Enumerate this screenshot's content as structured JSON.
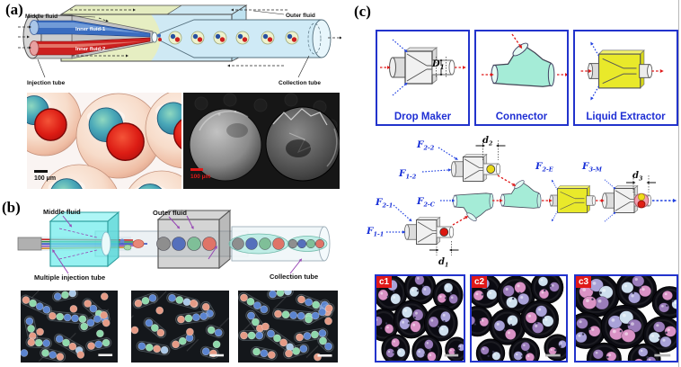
{
  "figure": {
    "panel_a": {
      "tag": "(a)",
      "labels": {
        "middle_fluid": "Middle fluid",
        "outer_fluid": "Outer fluid",
        "inner_fluid_1": "Inner fluid-1",
        "inner_fluid_2": "Inner fluid-2",
        "injection_tube": "Injection tube",
        "collection_tube": "Collection tube"
      },
      "optical_scalebar": "100 μm",
      "sem_scalebar": "100 μm"
    },
    "panel_b": {
      "tag": "(b)",
      "labels": {
        "middle_fluid": "Middle fluid",
        "outer_fluid": "Outer fluid",
        "multiple_injection_tube": "Multiple injection tube",
        "collection_tube": "Collection tube"
      }
    },
    "panel_c": {
      "tag": "(c)",
      "modules": [
        {
          "name": "Drop Maker",
          "dim_base": "D",
          "dim_sub": "1"
        },
        {
          "name": "Connector"
        },
        {
          "name": "Liquid Extractor"
        }
      ],
      "assembly": {
        "flow_labels": [
          {
            "id": "f2_2",
            "base": "F",
            "sub": "2-2"
          },
          {
            "id": "f1_2",
            "base": "F",
            "sub": "1-2"
          },
          {
            "id": "f2_1",
            "base": "F",
            "sub": "2-1"
          },
          {
            "id": "f1_1",
            "base": "F",
            "sub": "1-1"
          },
          {
            "id": "f2_c",
            "base": "F",
            "sub": "2-C"
          },
          {
            "id": "f2_e",
            "base": "F",
            "sub": "2-E"
          },
          {
            "id": "f3_m",
            "base": "F",
            "sub": "3-M"
          }
        ],
        "dim_labels": [
          {
            "id": "d1",
            "base": "d",
            "sub": "1"
          },
          {
            "id": "d2",
            "base": "d",
            "sub": "2"
          },
          {
            "id": "d3",
            "base": "d",
            "sub": "3"
          }
        ]
      },
      "image_tags": [
        "c1",
        "c2",
        "c3"
      ]
    },
    "colors": {
      "panel_border_blue": "#2233cc",
      "module_label_blue": "#1f2fd4",
      "flow_label_blue": "#1830d8",
      "arrow_red": "#e01818",
      "arrow_blue": "#2040e0",
      "connector_cyan": "#a5ecd7",
      "extractor_yellow": "#e9e92a",
      "badge_red": "#e01818",
      "drop_yellow": "#e8d818",
      "drop_red": "#dc1810",
      "final_shell_pink": "#f2a0b0",
      "b_drop_palette": [
        "#e59b86",
        "#8fd8ab",
        "#5b84cf",
        "#a9c7e6"
      ],
      "b_train_palette": [
        "#8e8e8e",
        "#5570bc",
        "#7fbf98",
        "#df7468"
      ],
      "c_core_palette": [
        "#d992c5",
        "#a9a2d8",
        "#cfe0ee",
        "#9a7cba"
      ],
      "a_shell": "#f0c5ab",
      "a_core_teal": "#3c93b8",
      "a_core_red": "#dc1c14"
    }
  }
}
